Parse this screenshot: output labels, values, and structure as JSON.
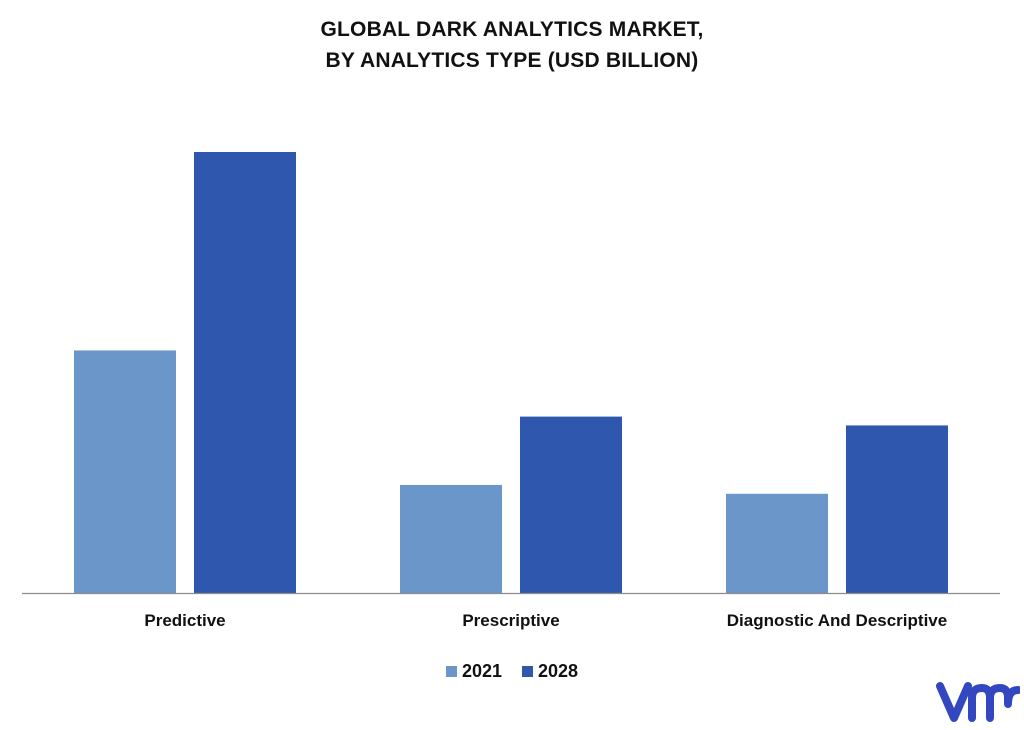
{
  "colors": {
    "series_2021": "#6b96c9",
    "series_2028": "#2f57ad",
    "axis": "#8c8c8c",
    "logo": "#3347c1"
  },
  "logo": {
    "icon": "vmr-logo"
  },
  "chart_data": {
    "type": "bar",
    "title": [
      "GLOBAL DARK ANALYTICS MARKET,",
      "BY ANALYTICS TYPE (USD BILLION)"
    ],
    "xlabel": "",
    "ylabel": "",
    "categories": [
      "Predictive",
      "Prescriptive",
      "Diagnostic And Descriptive"
    ],
    "series": [
      {
        "name": "2021",
        "values": [
          1.1,
          0.49,
          0.45
        ]
      },
      {
        "name": "2028",
        "values": [
          2.0,
          0.8,
          0.76
        ]
      }
    ],
    "ylim": [
      0,
      2.0
    ],
    "grid": false,
    "legend_position": "bottom"
  }
}
